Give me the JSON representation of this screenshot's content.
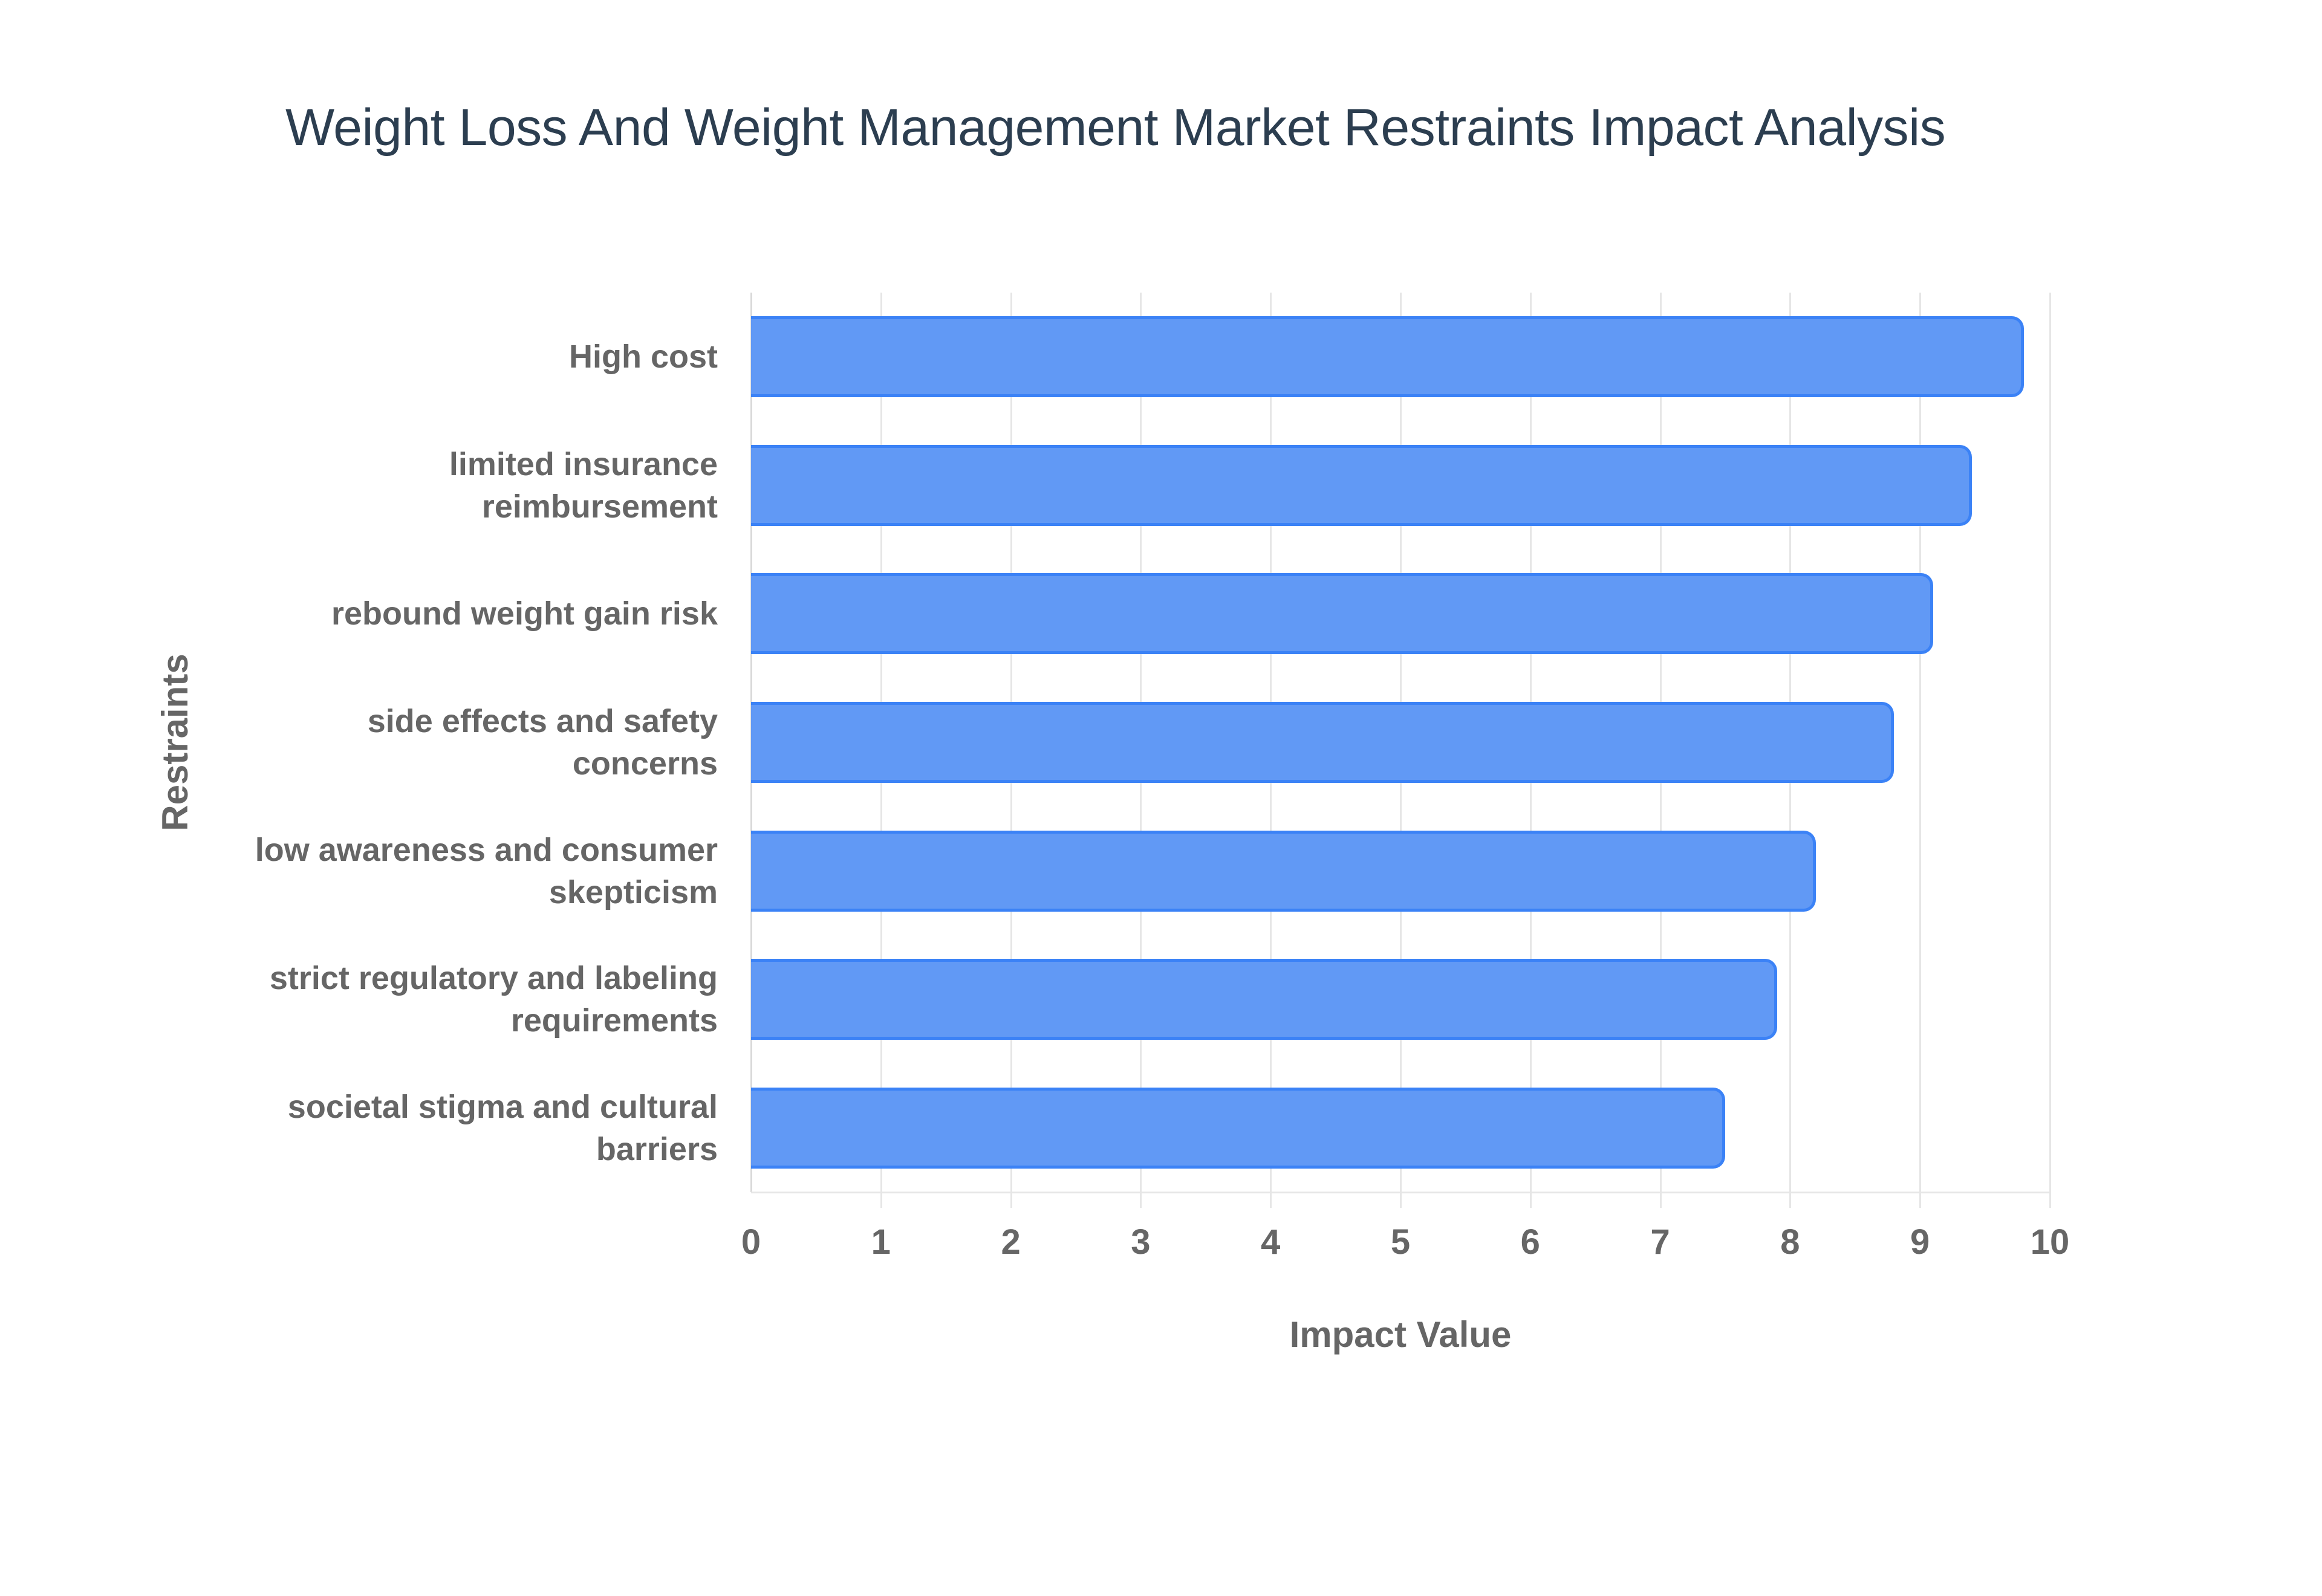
{
  "chart_data": {
    "type": "bar",
    "orientation": "horizontal",
    "title": "Weight Loss And Weight Management Market Restraints Impact Analysis",
    "xlabel": "Impact Value",
    "ylabel": "Restraints",
    "xlim": [
      0,
      10
    ],
    "x_ticks": [
      "0",
      "1",
      "2",
      "3",
      "4",
      "5",
      "6",
      "7",
      "8",
      "9",
      "10"
    ],
    "grid": true,
    "legend": null,
    "categories": [
      "High cost",
      "limited insurance reimbursement",
      "rebound weight gain risk",
      "side effects and safety concerns",
      "low awareness and consumer skepticism",
      "strict regulatory and labeling requirements",
      "societal stigma and cultural barriers"
    ],
    "category_label_lines": [
      [
        "High cost"
      ],
      [
        "limited insurance",
        "reimbursement"
      ],
      [
        "rebound weight gain risk"
      ],
      [
        "side effects and safety",
        "concerns"
      ],
      [
        "low awareness and consumer",
        "skepticism"
      ],
      [
        "strict regulatory and labeling",
        "requirements"
      ],
      [
        "societal stigma and cultural",
        "barriers"
      ]
    ],
    "values": [
      9.8,
      9.4,
      9.1,
      8.8,
      8.2,
      7.9,
      7.5
    ],
    "colors": {
      "bar_fill": "#6199f5",
      "bar_border": "#3b82f6",
      "title": "#2c3e50",
      "axis_text": "#666666",
      "grid": "#e6e6e6"
    }
  }
}
